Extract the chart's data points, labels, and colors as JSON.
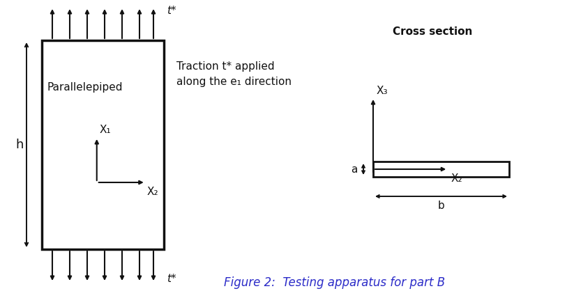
{
  "bg_color": "#ffffff",
  "text_color": "#111111",
  "line_color": "#111111",
  "fig_width": 8.23,
  "fig_height": 4.28,
  "caption": "Figure 2:  Testing apparatus for part B",
  "caption_color": "#2b2bc8",
  "traction_line1": "Traction t* applied",
  "traction_line2": "along the e₁ direction",
  "parallelepiped_label": "Parallelepiped",
  "h_label": "h",
  "x1_label": "X₁",
  "x2_label": "X₂",
  "t_star": "t*",
  "cross_title": "Cross section",
  "x3_label": "X₃",
  "x2_label_cs": "X₂",
  "a_label": "a",
  "b_label": "b"
}
